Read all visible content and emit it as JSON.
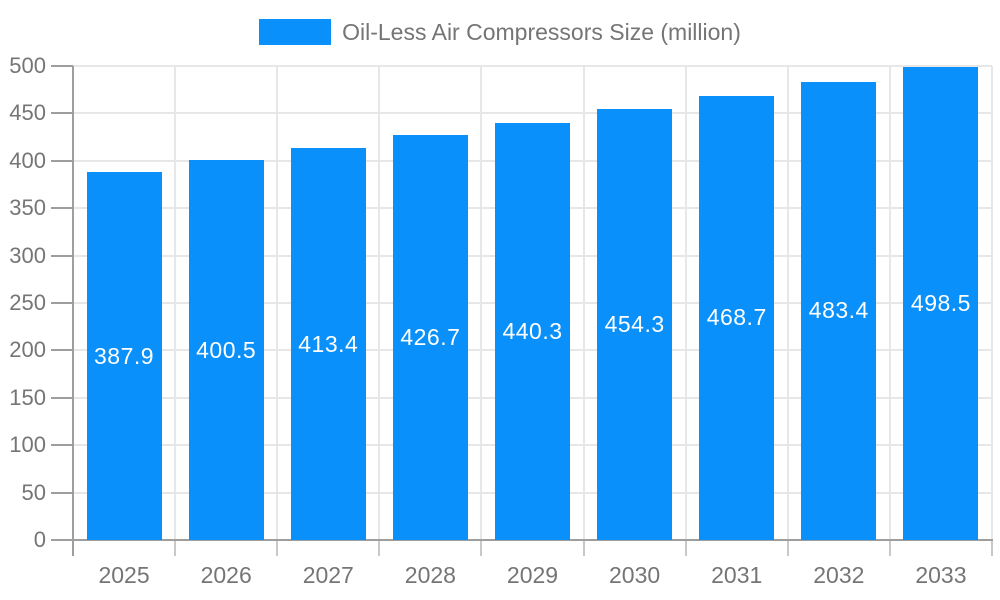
{
  "legend": {
    "label": "Oil-Less Air Compressors Size (million)"
  },
  "chart_data": {
    "type": "bar",
    "title": "Oil-Less Air Compressors Size (million)",
    "series_name": "Oil-Less Air Compressors Size (million)",
    "categories": [
      "2025",
      "2026",
      "2027",
      "2028",
      "2029",
      "2030",
      "2031",
      "2032",
      "2033"
    ],
    "values": [
      387.9,
      400.5,
      413.4,
      426.7,
      440.3,
      454.3,
      468.7,
      483.4,
      498.5
    ],
    "value_labels": [
      "387.9",
      "400.5",
      "413.4",
      "426.7",
      "440.3",
      "454.3",
      "468.7",
      "483.4",
      "498.5"
    ],
    "xlabel": "",
    "ylabel": "",
    "ylim": [
      0,
      500
    ],
    "yticks": [
      0,
      50,
      100,
      150,
      200,
      250,
      300,
      350,
      400,
      450,
      500
    ],
    "grid": true,
    "legend_position": "top",
    "value_label_position": "inside-center",
    "colors": {
      "bar": "#0a90fa",
      "grid": "#e7e7e7",
      "axis": "#9e9e9e",
      "tick": "#c9c9c9",
      "text": "#757575",
      "value_label": "#ffffff",
      "background": "#ffffff"
    }
  }
}
